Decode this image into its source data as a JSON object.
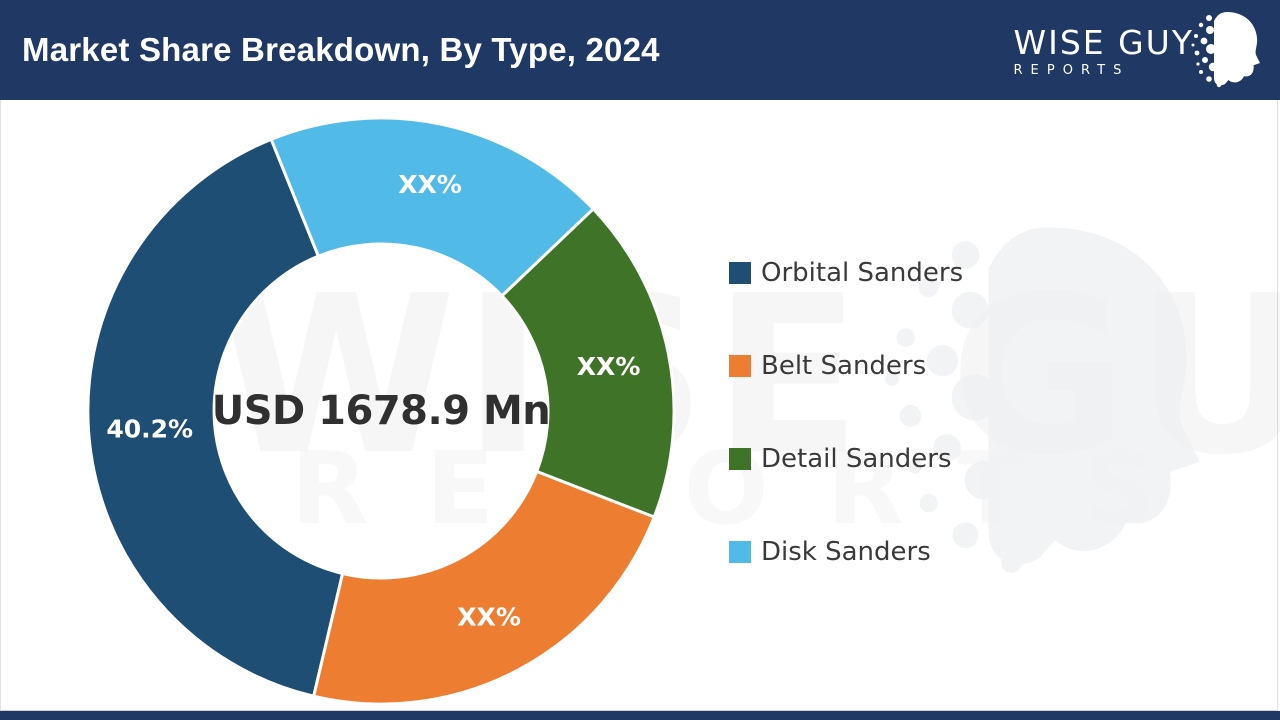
{
  "header": {
    "title": "Market Share Breakdown, By Type, 2024",
    "logo_line1": "WISE GUY",
    "logo_line2": "REPORTS"
  },
  "chart_data": {
    "type": "pie",
    "subtype": "donut",
    "title": "Market Share Breakdown, By Type, 2024",
    "center_label": "USD 1678.9 Mn",
    "start_angle_deg": -22,
    "direction": "clockwise",
    "draw_order": [
      "Disk Sanders",
      "Detail Sanders",
      "Belt Sanders",
      "Orbital Sanders"
    ],
    "segments": [
      {
        "name": "Orbital Sanders",
        "display_label": "40.2%",
        "pct_estimate": 40.2,
        "color": "#1f4e74"
      },
      {
        "name": "Belt Sanders",
        "display_label": "XX%",
        "pct_estimate": 22.8,
        "color": "#ed7d31"
      },
      {
        "name": "Detail Sanders",
        "display_label": "XX%",
        "pct_estimate": 18.0,
        "color": "#3f7428"
      },
      {
        "name": "Disk Sanders",
        "display_label": "XX%",
        "pct_estimate": 19.0,
        "color": "#51bae7"
      }
    ],
    "legend_position": "right",
    "legend": [
      "Orbital Sanders",
      "Belt Sanders",
      "Detail Sanders",
      "Disk Sanders"
    ]
  },
  "watermark": {
    "line1": "WISE GUY",
    "line2": "REPORTS"
  },
  "colors": {
    "header_bg": "#1f3864",
    "footer_bg": "#1f3864",
    "center_text": "#303030",
    "legend_text": "#3a3a3a"
  }
}
